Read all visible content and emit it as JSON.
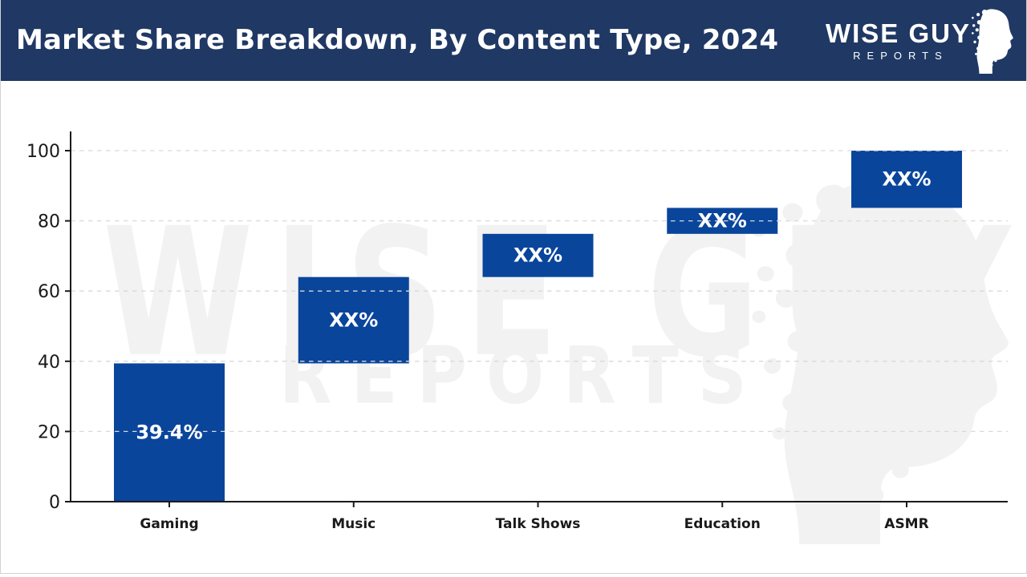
{
  "header": {
    "title": "Market Share Breakdown, By Content Type, 2024",
    "brand": {
      "line1": "WISE GUY",
      "line2": "REPORTS"
    }
  },
  "watermark": {
    "line1": "WISE GUY",
    "line2": "REPORTS"
  },
  "colors": {
    "header_bg": "#203864",
    "bar": "#0a459c",
    "grid": "#d9d9d9",
    "axis": "#1a1a1a",
    "tick_label": "#1a1a1a",
    "value_label": "#ffffff",
    "watermark": "#f2f2f2",
    "border": "#d2d2d2"
  },
  "chart_data": {
    "type": "bar",
    "subtype": "waterfall",
    "title": "Market Share Breakdown, By Content Type, 2024",
    "categories": [
      "Gaming",
      "Music",
      "Talk Shows",
      "Education",
      "ASMR"
    ],
    "segments": [
      {
        "category": "Gaming",
        "start": 0,
        "end": 39.4,
        "label": "39.4%"
      },
      {
        "category": "Music",
        "start": 39.4,
        "end": 64.0,
        "label": "XX%"
      },
      {
        "category": "Talk Shows",
        "start": 64.0,
        "end": 76.3,
        "label": "XX%"
      },
      {
        "category": "Education",
        "start": 76.3,
        "end": 83.7,
        "label": "XX%"
      },
      {
        "category": "ASMR",
        "start": 83.7,
        "end": 100.0,
        "label": "XX%"
      }
    ],
    "xlabel": "",
    "ylabel": "",
    "ylim": [
      0,
      100
    ],
    "yticks": [
      0,
      20,
      40,
      60,
      80,
      100
    ],
    "grid": "horizontal-dashed-above-bars",
    "legend": null
  }
}
